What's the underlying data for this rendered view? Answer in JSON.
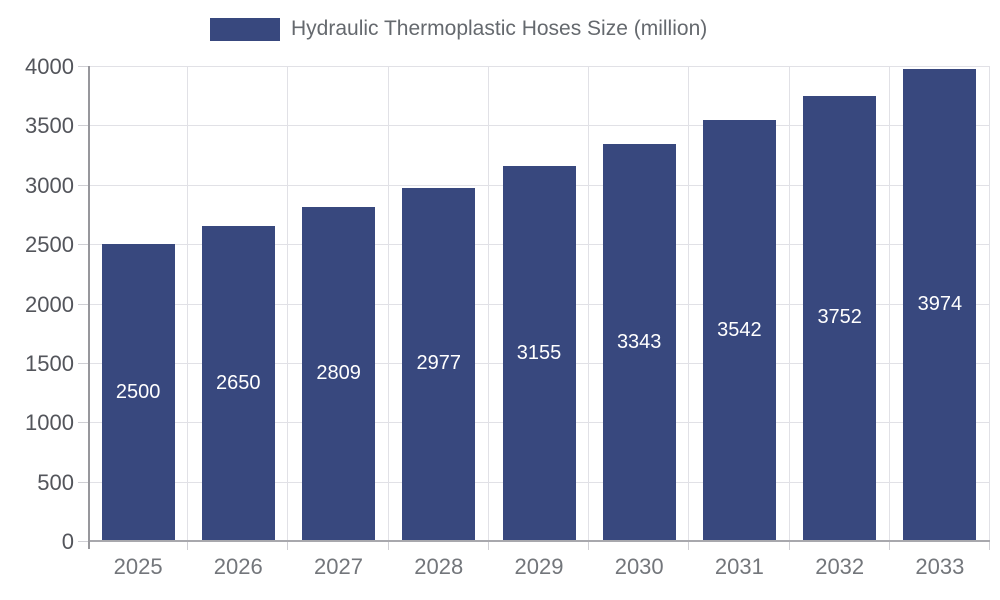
{
  "legend": {
    "label": "Hydraulic Thermoplastic Hoses Size (million)"
  },
  "chart_data": {
    "type": "bar",
    "title": "Hydraulic Thermoplastic Hoses Size (million)",
    "categories": [
      "2025",
      "2026",
      "2027",
      "2028",
      "2029",
      "2030",
      "2031",
      "2032",
      "2033"
    ],
    "values": [
      2500,
      2650,
      2809,
      2977,
      3155,
      3343,
      3542,
      3752,
      3974
    ],
    "xlabel": "",
    "ylabel": "",
    "ylim": [
      0,
      4000
    ],
    "ytick_step": 500,
    "ytick_labels": [
      "0",
      "500",
      "1000",
      "1500",
      "2000",
      "2500",
      "3000",
      "3500",
      "4000"
    ],
    "grid": true,
    "legend_position": "top",
    "bar_color": "#38487E",
    "bar_label_color": "#FFFFFF",
    "bar_labels_inside": true
  }
}
